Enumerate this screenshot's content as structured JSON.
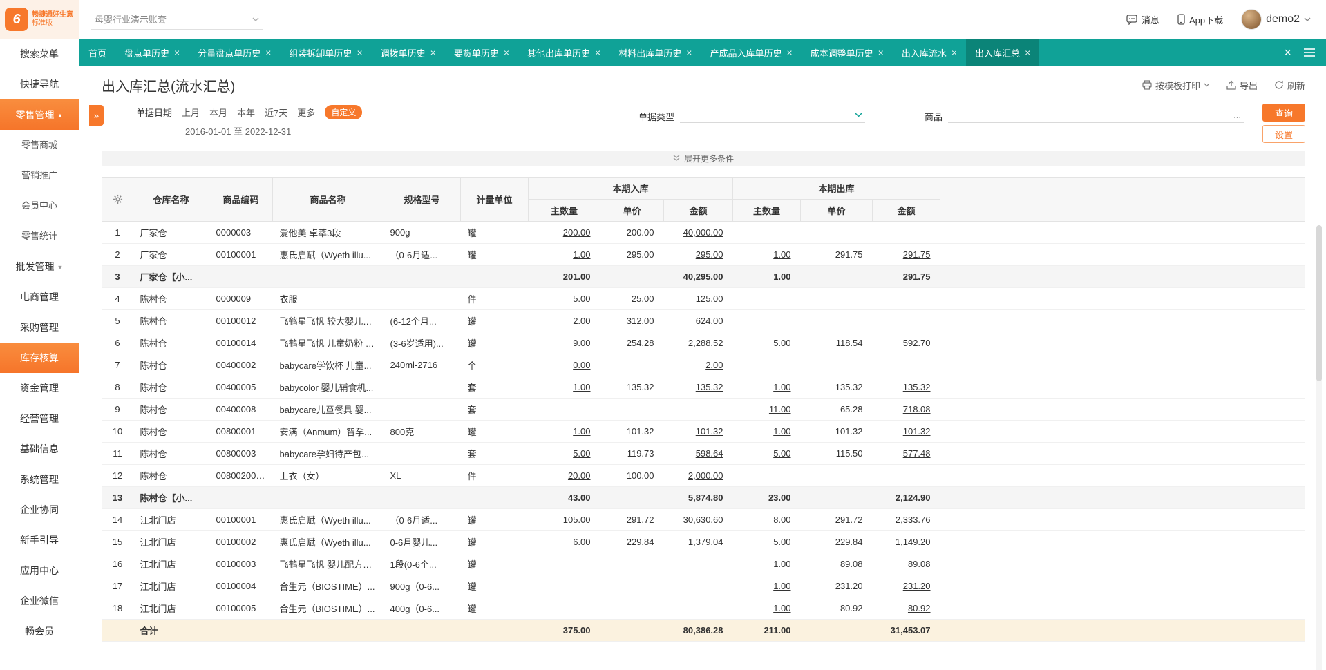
{
  "icons": {
    "close": "×",
    "caret_up": "▲",
    "caret_down": "▼",
    "double_chevron_right": "»"
  },
  "topbar": {
    "logo_title": "畅捷通好生意",
    "logo_badge": "标准版",
    "logo_glyph": "6",
    "account_value": "母婴行业演示账套",
    "messages_label": "消息",
    "app_download_label": "App下载",
    "username": "demo2"
  },
  "tabs": [
    {
      "label": "首页",
      "closable": false,
      "active": false
    },
    {
      "label": "盘点单历史",
      "closable": true,
      "active": false
    },
    {
      "label": "分量盘点单历史",
      "closable": true,
      "active": false
    },
    {
      "label": "组装拆卸单历史",
      "closable": true,
      "active": false
    },
    {
      "label": "调拨单历史",
      "closable": true,
      "active": false
    },
    {
      "label": "要货单历史",
      "closable": true,
      "active": false
    },
    {
      "label": "其他出库单历史",
      "closable": true,
      "active": false
    },
    {
      "label": "材料出库单历史",
      "closable": true,
      "active": false
    },
    {
      "label": "产成品入库单历史",
      "closable": true,
      "active": false
    },
    {
      "label": "成本调整单历史",
      "closable": true,
      "active": false
    },
    {
      "label": "出入库流水",
      "closable": true,
      "active": false
    },
    {
      "label": "出入库汇总",
      "closable": true,
      "active": true
    }
  ],
  "sidebar": [
    {
      "label": "搜索菜单",
      "type": "item"
    },
    {
      "label": "快捷导航",
      "type": "item"
    },
    {
      "label": "零售管理",
      "type": "group-open",
      "arrow": "up"
    },
    {
      "label": "零售商城",
      "type": "subitem"
    },
    {
      "label": "营销推广",
      "type": "subitem"
    },
    {
      "label": "会员中心",
      "type": "subitem"
    },
    {
      "label": "零售统计",
      "type": "subitem"
    },
    {
      "label": "批发管理",
      "type": "group",
      "arrow": "down"
    },
    {
      "label": "电商管理",
      "type": "item"
    },
    {
      "label": "采购管理",
      "type": "item"
    },
    {
      "label": "库存核算",
      "type": "item-active"
    },
    {
      "label": "资金管理",
      "type": "item"
    },
    {
      "label": "经营管理",
      "type": "item"
    },
    {
      "label": "基础信息",
      "type": "item"
    },
    {
      "label": "系统管理",
      "type": "item"
    },
    {
      "label": "企业协同",
      "type": "item"
    },
    {
      "label": "新手引导",
      "type": "item"
    },
    {
      "label": "应用中心",
      "type": "item"
    },
    {
      "label": "企业微信",
      "type": "item"
    },
    {
      "label": "畅会员",
      "type": "item"
    }
  ],
  "page": {
    "title": "出入库汇总(流水汇总)",
    "print_label": "按模板打印",
    "export_label": "导出",
    "refresh_label": "刷新"
  },
  "filters": {
    "date_label": "单据日期",
    "date_quick": [
      "上月",
      "本月",
      "本年",
      "近7天",
      "更多"
    ],
    "custom_badge": "自定义",
    "date_range": "2016-01-01 至 2022-12-31",
    "doc_type_label": "单据类型",
    "product_label": "商品",
    "product_more": "...",
    "query_button": "查询",
    "settings_button": "设置",
    "expand_more": "展开更多条件"
  },
  "table": {
    "col_warehouse": "仓库名称",
    "col_code": "商品编码",
    "col_name": "商品名称",
    "col_spec": "规格型号",
    "col_unit": "计量单位",
    "group_in": "本期入库",
    "group_out": "本期出库",
    "col_qty": "主数量",
    "col_price": "单价",
    "col_amount": "金额",
    "rows": [
      {
        "n": "1",
        "warehouse": "厂家仓",
        "code": "0000003",
        "name": "爱他美 卓萃3段",
        "spec": "900g",
        "unit": "罐",
        "in_qty": "200.00",
        "in_price": "200.00",
        "in_amt": "40,000.00",
        "out_qty": "",
        "out_price": "",
        "out_amt": "",
        "type": "data"
      },
      {
        "n": "2",
        "warehouse": "厂家仓",
        "code": "00100001",
        "name": "惠氏启赋（Wyeth illu...",
        "spec": "（0-6月适...",
        "unit": "罐",
        "in_qty": "1.00",
        "in_price": "295.00",
        "in_amt": "295.00",
        "out_qty": "1.00",
        "out_price": "291.75",
        "out_amt": "291.75",
        "type": "data"
      },
      {
        "n": "3",
        "warehouse": "厂家仓【小...",
        "code": "",
        "name": "",
        "spec": "",
        "unit": "",
        "in_qty": "201.00",
        "in_price": "",
        "in_amt": "40,295.00",
        "out_qty": "1.00",
        "out_price": "",
        "out_amt": "291.75",
        "type": "subtotal"
      },
      {
        "n": "4",
        "warehouse": "陈村仓",
        "code": "0000009",
        "name": "衣服",
        "spec": "",
        "unit": "件",
        "in_qty": "5.00",
        "in_price": "25.00",
        "in_amt": "125.00",
        "out_qty": "",
        "out_price": "",
        "out_amt": "",
        "type": "data"
      },
      {
        "n": "5",
        "warehouse": "陈村仓",
        "code": "00100012",
        "name": "飞鹤星飞帆 较大婴儿配...",
        "spec": "(6-12个月...",
        "unit": "罐",
        "in_qty": "2.00",
        "in_price": "312.00",
        "in_amt": "624.00",
        "out_qty": "",
        "out_price": "",
        "out_amt": "",
        "type": "data"
      },
      {
        "n": "6",
        "warehouse": "陈村仓",
        "code": "00100014",
        "name": "飞鹤星飞帆 儿童奶粉 4...",
        "spec": "(3-6岁适用)...",
        "unit": "罐",
        "in_qty": "9.00",
        "in_price": "254.28",
        "in_amt": "2,288.52",
        "out_qty": "5.00",
        "out_price": "118.54",
        "out_amt": "592.70",
        "type": "data"
      },
      {
        "n": "7",
        "warehouse": "陈村仓",
        "code": "00400002",
        "name": "babycare学饮杯 儿童...",
        "spec": "240ml-2716",
        "unit": "个",
        "in_qty": "0.00",
        "in_price": "",
        "in_amt": "2.00",
        "out_qty": "",
        "out_price": "",
        "out_amt": "",
        "type": "data"
      },
      {
        "n": "8",
        "warehouse": "陈村仓",
        "code": "00400005",
        "name": "babycolor 婴儿辅食机...",
        "spec": "",
        "unit": "套",
        "in_qty": "1.00",
        "in_price": "135.32",
        "in_amt": "135.32",
        "out_qty": "1.00",
        "out_price": "135.32",
        "out_amt": "135.32",
        "type": "data"
      },
      {
        "n": "9",
        "warehouse": "陈村仓",
        "code": "00400008",
        "name": "babycare儿童餐具 婴...",
        "spec": "",
        "unit": "套",
        "in_qty": "",
        "in_price": "",
        "in_amt": "",
        "out_qty": "11.00",
        "out_price": "65.28",
        "out_amt": "718.08",
        "type": "data"
      },
      {
        "n": "10",
        "warehouse": "陈村仓",
        "code": "00800001",
        "name": "安满（Anmum）智孕...",
        "spec": "800克",
        "unit": "罐",
        "in_qty": "1.00",
        "in_price": "101.32",
        "in_amt": "101.32",
        "out_qty": "1.00",
        "out_price": "101.32",
        "out_amt": "101.32",
        "type": "data"
      },
      {
        "n": "11",
        "warehouse": "陈村仓",
        "code": "00800003",
        "name": "babycare孕妇待产包...",
        "spec": "",
        "unit": "套",
        "in_qty": "5.00",
        "in_price": "119.73",
        "in_amt": "598.64",
        "out_qty": "5.00",
        "out_price": "115.50",
        "out_amt": "577.48",
        "type": "data"
      },
      {
        "n": "12",
        "warehouse": "陈村仓",
        "code": "008002000...",
        "name": "上衣（女）",
        "spec": "XL",
        "unit": "件",
        "in_qty": "20.00",
        "in_price": "100.00",
        "in_amt": "2,000.00",
        "out_qty": "",
        "out_price": "",
        "out_amt": "",
        "type": "data"
      },
      {
        "n": "13",
        "warehouse": "陈村仓【小...",
        "code": "",
        "name": "",
        "spec": "",
        "unit": "",
        "in_qty": "43.00",
        "in_price": "",
        "in_amt": "5,874.80",
        "out_qty": "23.00",
        "out_price": "",
        "out_amt": "2,124.90",
        "type": "subtotal"
      },
      {
        "n": "14",
        "warehouse": "江北门店",
        "code": "00100001",
        "name": "惠氏启赋（Wyeth illu...",
        "spec": "（0-6月适...",
        "unit": "罐",
        "in_qty": "105.00",
        "in_price": "291.72",
        "in_amt": "30,630.60",
        "out_qty": "8.00",
        "out_price": "291.72",
        "out_amt": "2,333.76",
        "type": "data"
      },
      {
        "n": "15",
        "warehouse": "江北门店",
        "code": "00100002",
        "name": "惠氏启赋（Wyeth illu...",
        "spec": "0-6月婴儿...",
        "unit": "罐",
        "in_qty": "6.00",
        "in_price": "229.84",
        "in_amt": "1,379.04",
        "out_qty": "5.00",
        "out_price": "229.84",
        "out_amt": "1,149.20",
        "type": "data"
      },
      {
        "n": "16",
        "warehouse": "江北门店",
        "code": "00100003",
        "name": "飞鹤星飞帆 婴儿配方奶...",
        "spec": "1段(0-6个...",
        "unit": "罐",
        "in_qty": "",
        "in_price": "",
        "in_amt": "",
        "out_qty": "1.00",
        "out_price": "89.08",
        "out_amt": "89.08",
        "type": "data"
      },
      {
        "n": "17",
        "warehouse": "江北门店",
        "code": "00100004",
        "name": "合生元（BIOSTIME）...",
        "spec": "900g（0-6...",
        "unit": "罐",
        "in_qty": "",
        "in_price": "",
        "in_amt": "",
        "out_qty": "1.00",
        "out_price": "231.20",
        "out_amt": "231.20",
        "type": "data"
      },
      {
        "n": "18",
        "warehouse": "江北门店",
        "code": "00100005",
        "name": "合生元（BIOSTIME）...",
        "spec": "400g（0-6...",
        "unit": "罐",
        "in_qty": "",
        "in_price": "",
        "in_amt": "",
        "out_qty": "1.00",
        "out_price": "80.92",
        "out_amt": "80.92",
        "type": "data"
      }
    ],
    "total_row": {
      "label": "合计",
      "in_qty": "375.00",
      "in_amt": "80,386.28",
      "out_qty": "211.00",
      "out_amt": "31,453.07"
    }
  }
}
